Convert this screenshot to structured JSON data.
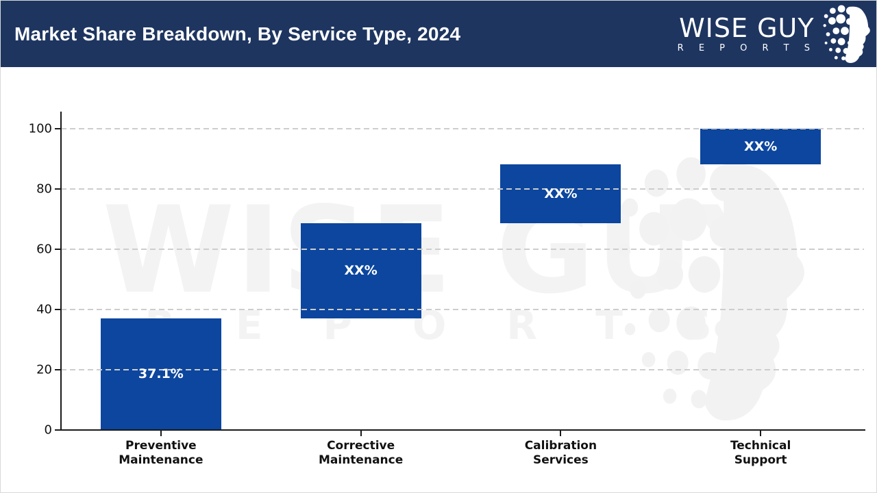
{
  "header": {
    "title": "Market Share Breakdown, By Service Type, 2024",
    "bg_color": "#1e3560",
    "logo": {
      "line1": "WISE GUY",
      "line2": "R E P O R T S"
    }
  },
  "watermark": {
    "line1": "WISE GUY",
    "line2": "REPORTS"
  },
  "chart_data": {
    "type": "bar",
    "subtype": "waterfall-stacked-breakdown",
    "title": "Market Share Breakdown, By Service Type, 2024",
    "categories": [
      "Preventive\nMaintenance",
      "Corrective\nMaintenance",
      "Calibration\nServices",
      "Technical Support"
    ],
    "segments": [
      {
        "category": "Preventive Maintenance",
        "start": 0,
        "end": 37.1,
        "value": 37.1,
        "label": "37.1%"
      },
      {
        "category": "Corrective Maintenance",
        "start": 37.1,
        "end": 68.6,
        "value": 31.5,
        "label": "XX%"
      },
      {
        "category": "Calibration Services",
        "start": 68.6,
        "end": 88.2,
        "value": 19.6,
        "label": "XX%"
      },
      {
        "category": "Technical Support",
        "start": 88.2,
        "end": 100,
        "value": 11.8,
        "label": "XX%"
      }
    ],
    "ylim": [
      0,
      100
    ],
    "yticks": [
      0,
      20,
      40,
      60,
      80,
      100
    ],
    "xlabel": "",
    "ylabel": "",
    "grid": "horizontal-dashed",
    "legend": "none",
    "bar_color": "#0c469e",
    "bar_label_color": "#ffffff",
    "grid_color": "#cdcdcd",
    "axis_color": "#1a1a1a"
  }
}
